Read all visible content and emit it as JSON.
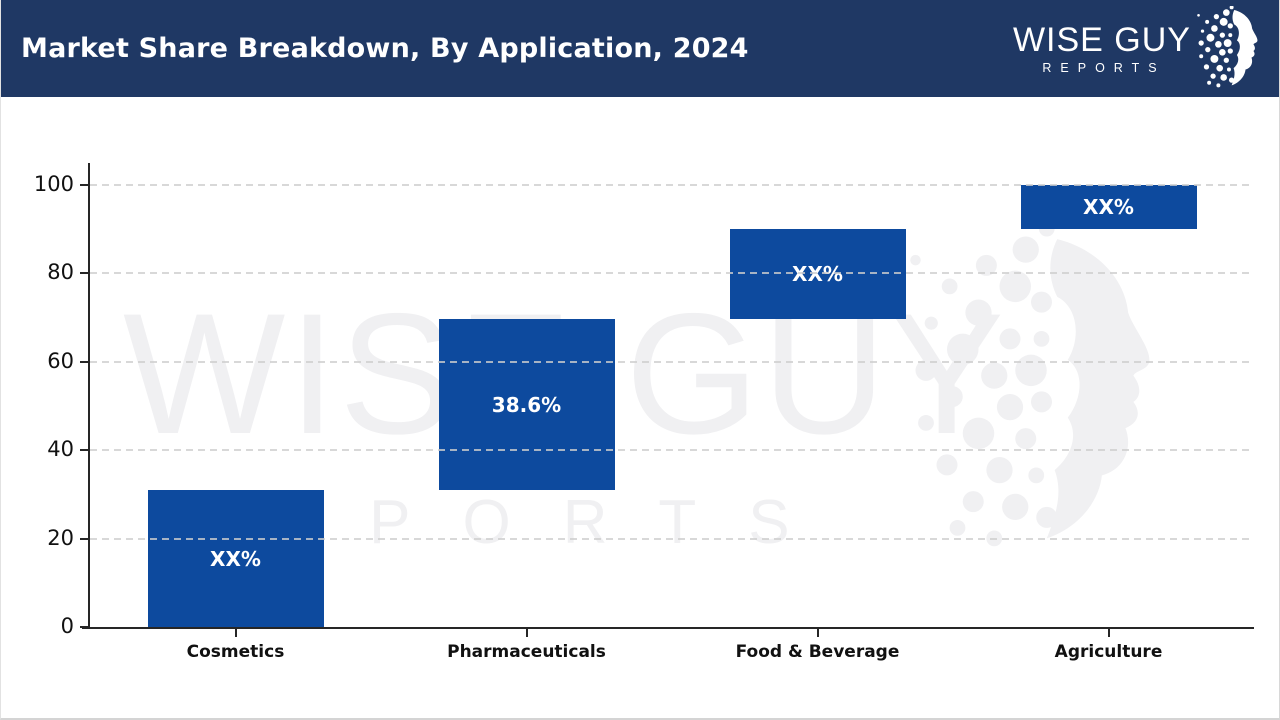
{
  "header": {
    "title": "Market Share Breakdown, By Application, 2024",
    "logo": {
      "wordmark": "WISE GUY",
      "subtext": "REPORTS"
    }
  },
  "watermark": {
    "wordmark": "WISE GUY",
    "subtext": "REPORTS"
  },
  "colors": {
    "header_bg": "#1f3864",
    "header_text": "#ffffff",
    "bar_fill": "#0d4a9e",
    "bar_label_text": "#ffffff",
    "axis": "#262626",
    "tick_text": "#111111",
    "grid": "#d9d9d9",
    "watermark": "#f0f0f2",
    "logo_text": "#ffffff"
  },
  "chart_data": {
    "type": "bar",
    "subtype": "waterfall",
    "title": "Market Share Breakdown, By Application, 2024",
    "categories": [
      "Cosmetics",
      "Pharmaceuticals",
      "Food & Beverage",
      "Agriculture"
    ],
    "segments": [
      {
        "category": "Cosmetics",
        "start": 0,
        "end": 31,
        "value": 31,
        "label": "XX%"
      },
      {
        "category": "Pharmaceuticals",
        "start": 31,
        "end": 69.6,
        "value": 38.6,
        "label": "38.6%"
      },
      {
        "category": "Food & Beverage",
        "start": 69.6,
        "end": 90,
        "value": 20.4,
        "label": "XX%"
      },
      {
        "category": "Agriculture",
        "start": 90,
        "end": 100,
        "value": 10,
        "label": "XX%"
      }
    ],
    "yticks": [
      0,
      20,
      40,
      60,
      80,
      100
    ],
    "ylim": [
      0,
      105
    ],
    "xlabel": "",
    "ylabel": "",
    "grid": "horizontal-dashed-above-bars",
    "legend": "none"
  }
}
